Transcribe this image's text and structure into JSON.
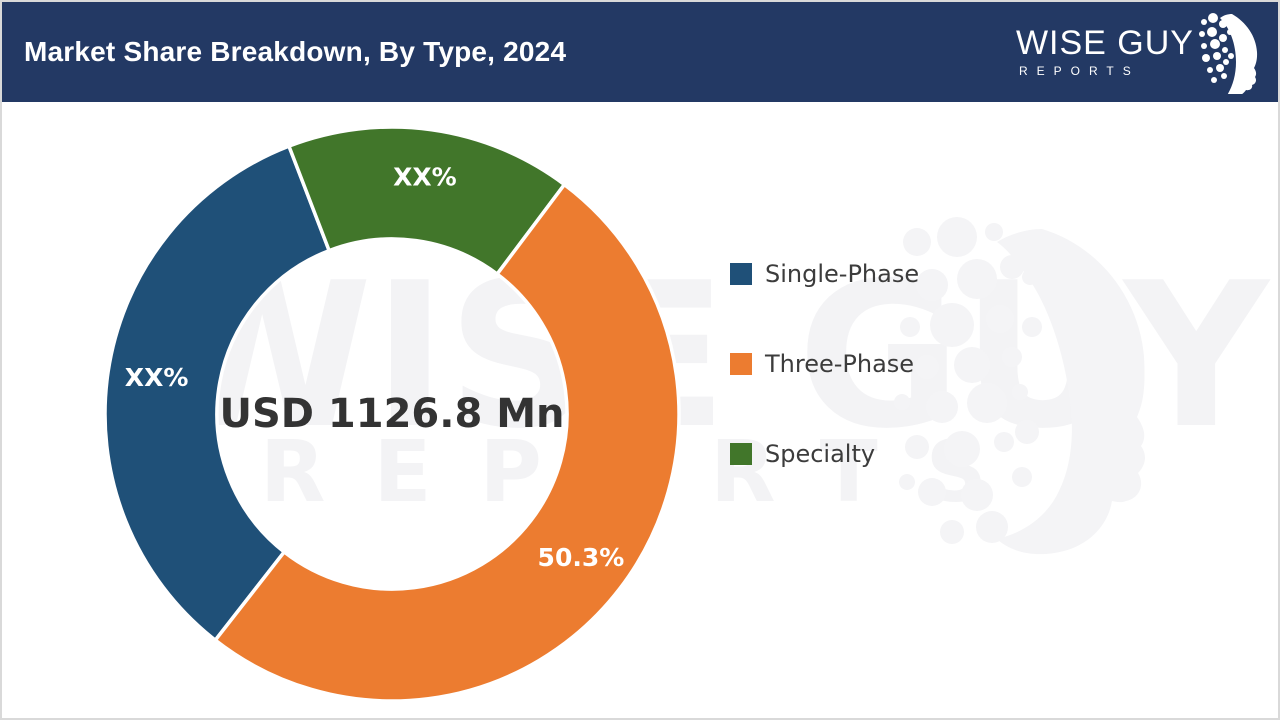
{
  "header": {
    "title": "Market Share Breakdown, By Type, 2024",
    "logo": {
      "line1": "WISE GUY",
      "line2": "REPORTS"
    }
  },
  "chart_data": {
    "type": "pie",
    "subtype": "donut",
    "title": "Market Share Breakdown, By Type, 2024",
    "center_label": "USD 1126.8 Mn",
    "start_angle_deg": 218,
    "donut_hole_ratio": 0.61,
    "legend_position": "right",
    "segments": [
      {
        "name": "Single-Phase",
        "value_pct": 33.6,
        "display_label": "XX%",
        "color": "#1F5078"
      },
      {
        "name": "Specialty",
        "value_pct": 16.1,
        "display_label": "XX%",
        "color": "#41762A"
      },
      {
        "name": "Three-Phase",
        "value_pct": 50.3,
        "display_label": "50.3%",
        "color": "#EC7C30"
      }
    ]
  },
  "legend": {
    "items": [
      {
        "label": "Single-Phase",
        "color": "#1F5078"
      },
      {
        "label": "Three-Phase",
        "color": "#EC7C30"
      },
      {
        "label": "Specialty",
        "color": "#41762A"
      }
    ]
  },
  "watermark": {
    "line1": "WISE GUY",
    "line2": "REPORTS"
  },
  "colors": {
    "header_bg": "#233964",
    "center_text": "#333333",
    "legend_text": "#3C3C3C",
    "watermark": "#F3F3F5",
    "slice_divider": "#FFFFFF"
  }
}
